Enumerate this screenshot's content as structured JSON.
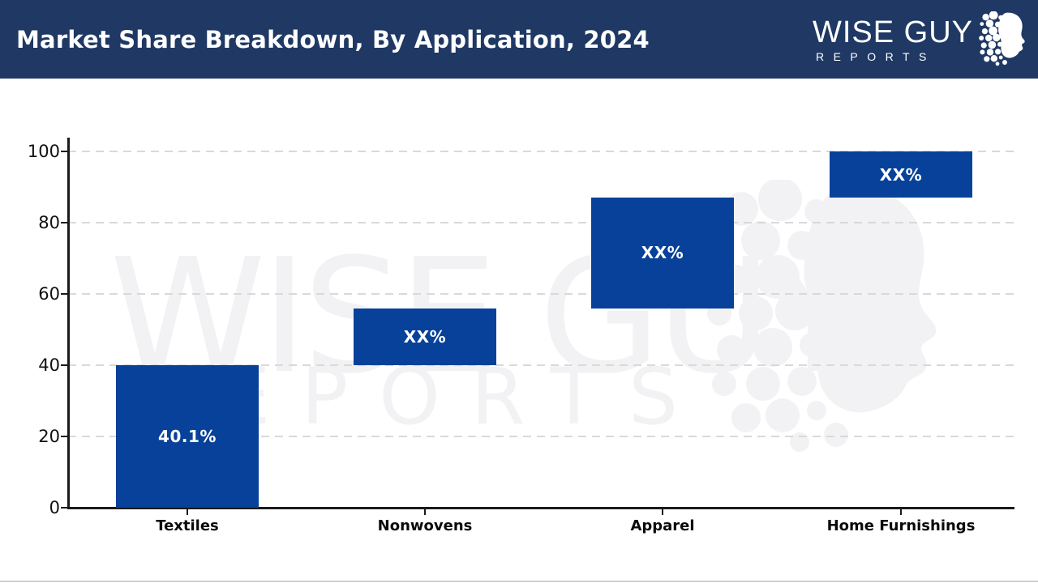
{
  "header": {
    "title": "Market Share Breakdown, By Application, 2024",
    "logo": {
      "line1": "WISE GUY",
      "line2": "REPORTS"
    }
  },
  "watermark": {
    "line1": "WISE GUY",
    "line2": "REPORTS"
  },
  "chart_data": {
    "type": "bar",
    "subtype": "waterfall",
    "title": "Market Share Breakdown, By Application, 2024",
    "categories": [
      "Textiles",
      "Nonwovens",
      "Apparel",
      "Home Furnishings"
    ],
    "segments": [
      {
        "category": "Textiles",
        "start": 0,
        "end": 40.1,
        "label": "40.1%"
      },
      {
        "category": "Nonwovens",
        "start": 40.1,
        "end": 56.0,
        "label": "XX%"
      },
      {
        "category": "Apparel",
        "start": 56.0,
        "end": 87.0,
        "label": "XX%"
      },
      {
        "category": "Home Furnishings",
        "start": 87.0,
        "end": 100.0,
        "label": "XX%"
      }
    ],
    "ylim": [
      0,
      100
    ],
    "yticks": [
      0,
      20,
      40,
      60,
      80,
      100
    ],
    "grid": "dashed-horizontal",
    "legend": "none",
    "xlabel": "",
    "ylabel": "",
    "bar_color": "#07419a",
    "bar_label_color": "#ffffff"
  },
  "colors": {
    "header_navy": "#1f3864",
    "bar_blue": "#07419a",
    "gridline_gray": "#d9d9d9",
    "axis_black": "#1a1a1a",
    "watermark_gray": "#f2f2f4",
    "title_text": "#ffffff"
  }
}
